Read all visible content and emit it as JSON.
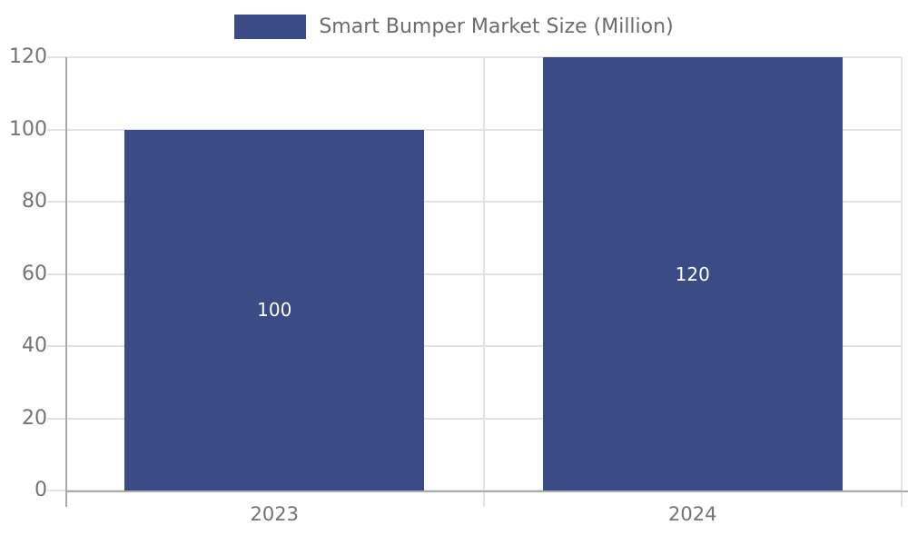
{
  "chart_data": {
    "type": "bar",
    "title": "Smart Bumper Market Size (Million)",
    "categories": [
      "2023",
      "2024"
    ],
    "values": [
      100,
      120
    ],
    "value_labels": [
      "100",
      "120"
    ],
    "yticks": [
      0,
      20,
      40,
      60,
      80,
      100,
      120
    ],
    "ylim": [
      0,
      120
    ],
    "xlabel": "",
    "ylabel": "",
    "grid": true,
    "legend_position": "top-center",
    "colors": {
      "bar": "#3b4b85",
      "value_label": "#ffffff",
      "grid_line": "#e3e3e3",
      "axis_line": "#ababab",
      "tick_text": "#737373",
      "legend_text": "#6b6b6b"
    }
  }
}
